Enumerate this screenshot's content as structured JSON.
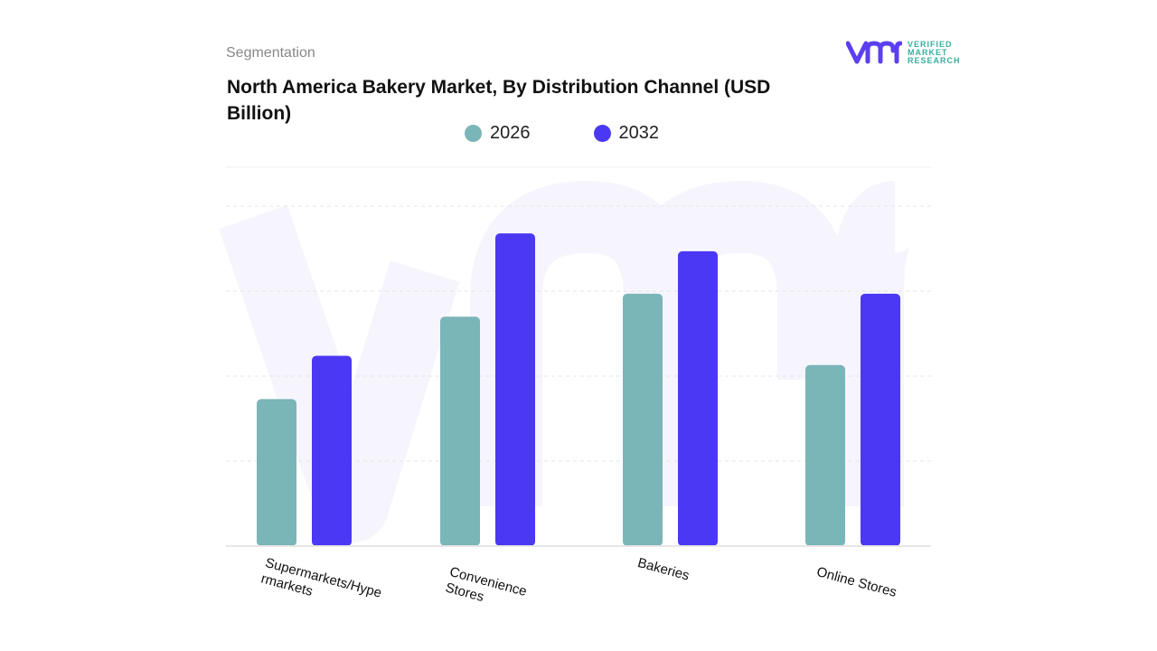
{
  "header": {
    "segment_label": "Segmentation",
    "title": "North America Bakery Market, By Distribution Channel (USD Billion)"
  },
  "logo": {
    "line1": "VERIFIED",
    "line2": "MARKET",
    "line3": "RESEARCH",
    "mark": "vmr"
  },
  "chart_data": {
    "type": "bar",
    "title": "North America Bakery Market, By Distribution Channel (USD Billion)",
    "categories": [
      "Supermarkets/Hypermarkets",
      "Convenience Stores",
      "Bakeries",
      "Online Stores"
    ],
    "series": [
      {
        "name": "2026",
        "color": "#7ab5b8",
        "values": [
          1.73,
          2.7,
          2.97,
          2.13
        ]
      },
      {
        "name": "2032",
        "color": "#4b38f5",
        "values": [
          2.24,
          3.68,
          3.47,
          2.97
        ]
      }
    ],
    "xlabel": "",
    "ylabel": "",
    "ylim": [
      0,
      4
    ],
    "grid": true,
    "y_tick_labels_shown": false,
    "legend_position": "top"
  }
}
